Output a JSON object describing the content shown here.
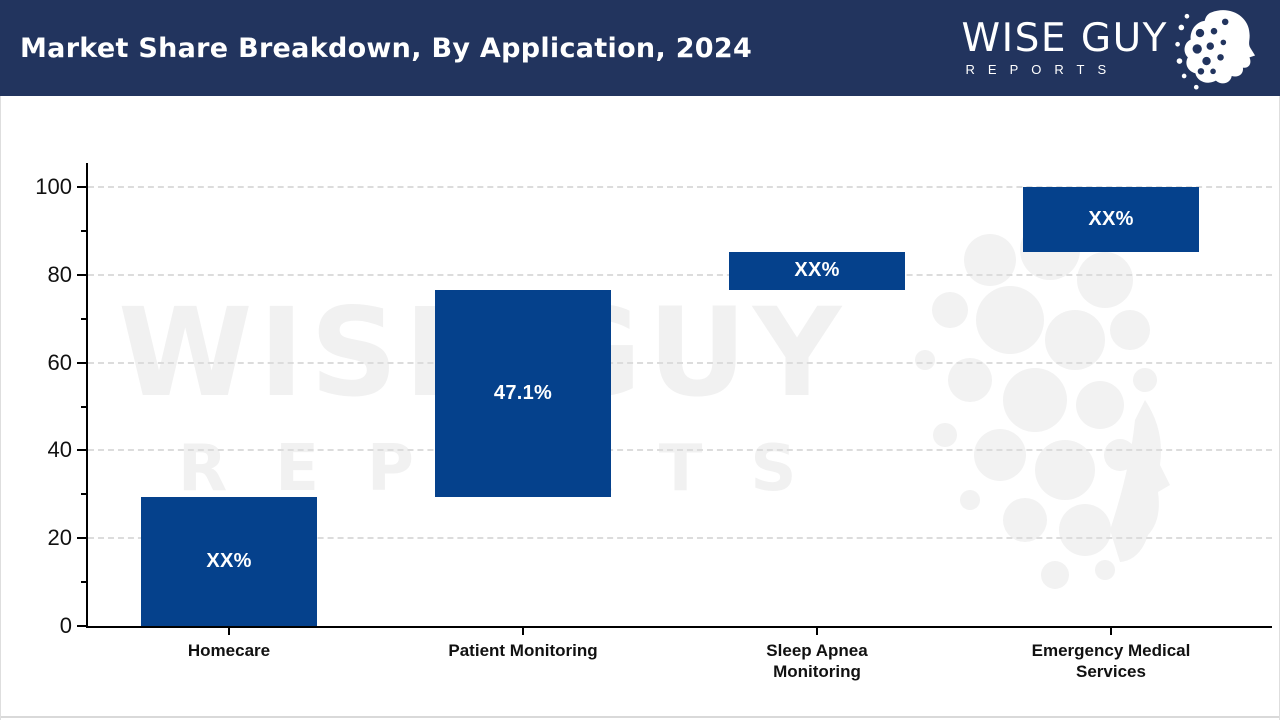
{
  "header": {
    "title": "Market Share Breakdown, By Application, 2024",
    "logo": {
      "line1": "WISE GUY",
      "line2": "REPORTS"
    }
  },
  "watermark": {
    "line1": "WISE GUY",
    "line2": "REPORTS"
  },
  "chart_data": {
    "type": "bar",
    "subtype": "waterfall",
    "title": "Market Share Breakdown, By Application, 2024",
    "categories": [
      "Homecare",
      "Patient Monitoring",
      "Sleep Apnea Monitoring",
      "Emergency Medical Services"
    ],
    "segments": [
      {
        "category": "Homecare",
        "start": 0,
        "end": 29.4,
        "label": "XX%"
      },
      {
        "category": "Patient Monitoring",
        "start": 29.4,
        "end": 76.5,
        "label": "47.1%"
      },
      {
        "category": "Sleep Apnea Monitoring",
        "start": 76.5,
        "end": 85.3,
        "label": "XX%"
      },
      {
        "category": "Emergency Medical Services",
        "start": 85.3,
        "end": 100,
        "label": "XX%"
      }
    ],
    "yticks": [
      0,
      20,
      40,
      60,
      80,
      100
    ],
    "minor_yticks": [
      10,
      30,
      50,
      70,
      90
    ],
    "ylim": [
      0,
      105
    ],
    "xlabel": "",
    "ylabel": "",
    "grid": "dashed-horizontal",
    "legend": "none",
    "colors": {
      "bar": "#05418c",
      "header_bg": "#22345e",
      "grid": "#dcdcdc",
      "axis": "#000000",
      "bar_label_text": "#ffffff",
      "watermark": "#f1f1f1"
    }
  }
}
